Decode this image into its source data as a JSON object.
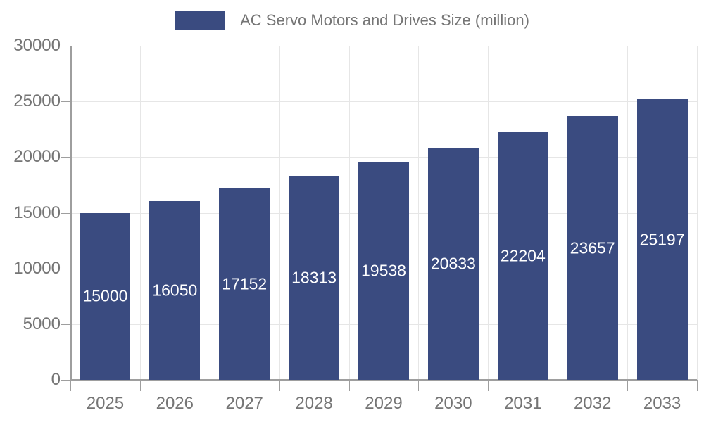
{
  "chart_data": {
    "type": "bar",
    "title": "AC Servo Motors and Drives Size (million)",
    "categories": [
      "2025",
      "2026",
      "2027",
      "2028",
      "2029",
      "2030",
      "2031",
      "2032",
      "2033"
    ],
    "values": [
      15000,
      16050,
      17152,
      18313,
      19538,
      20833,
      22204,
      23657,
      25197
    ],
    "xlabel": "",
    "ylabel": "",
    "ylim": [
      0,
      30000
    ],
    "ytick_step": 5000,
    "yticks": [
      "0",
      "5000",
      "10000",
      "15000",
      "20000",
      "25000",
      "30000"
    ],
    "grid": true,
    "legend_position": "top",
    "bar_value_labels_visible": true,
    "colors": {
      "bar": "#3A4B80",
      "axis": "#9E9E9E",
      "gridline": "#E6E6E6",
      "axis_label": "#757575",
      "legend_text": "#757575",
      "bar_label": "#FFFFFF",
      "background": "#FFFFFF"
    }
  }
}
